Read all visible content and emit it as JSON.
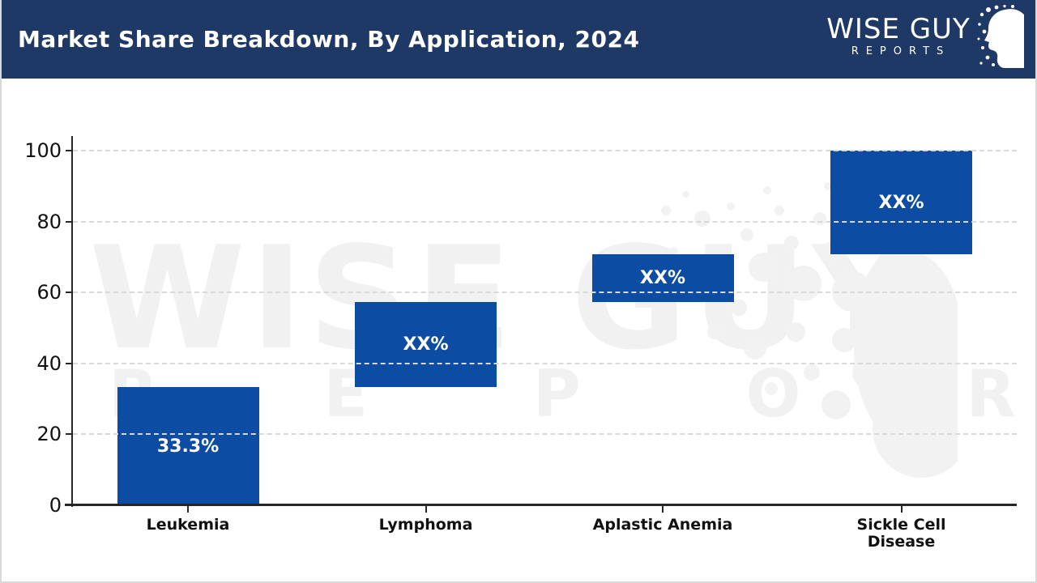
{
  "header": {
    "title": "Market Share Breakdown, By Application, 2024",
    "bg_color": "#1f3966",
    "logo": {
      "line1": "WISE GUY",
      "line2": "R E P O R T S",
      "face_icon": "dotted-face-profile"
    }
  },
  "watermark": {
    "line1": "WISE GUY",
    "line2": "REPORTS",
    "face_icon": "dotted-face-profile"
  },
  "chart_data": {
    "type": "bar",
    "subtype": "floating-waterfall",
    "title": "Market Share Breakdown, By Application, 2024",
    "categories": [
      "Leukemia",
      "Lymphoma",
      "Aplastic Anemia",
      "Sickle Cell Disease"
    ],
    "tick_labels": [
      "Leukemia",
      "Lymphoma",
      "Aplastic Anemia",
      "Sickle Cell\nDisease"
    ],
    "bars": [
      {
        "category": "Leukemia",
        "start": 0,
        "end": 33.3,
        "label": "33.3%"
      },
      {
        "category": "Lymphoma",
        "start": 33.3,
        "end": 57.3,
        "label": "XX%"
      },
      {
        "category": "Aplastic Anemia",
        "start": 57.3,
        "end": 70.7,
        "label": "XX%"
      },
      {
        "category": "Sickle Cell Disease",
        "start": 70.7,
        "end": 100,
        "label": "XX%"
      }
    ],
    "yticks": [
      0,
      20,
      40,
      60,
      80,
      100
    ],
    "ylim": [
      0,
      104
    ],
    "xlabel": "",
    "ylabel": "",
    "grid": "horizontal-dashed",
    "legend": "none",
    "bar_color": "#0c4ca3",
    "bar_label_color": "#ffffff",
    "axis_color": "#262626",
    "gridline_color": "#d9d9d9"
  }
}
